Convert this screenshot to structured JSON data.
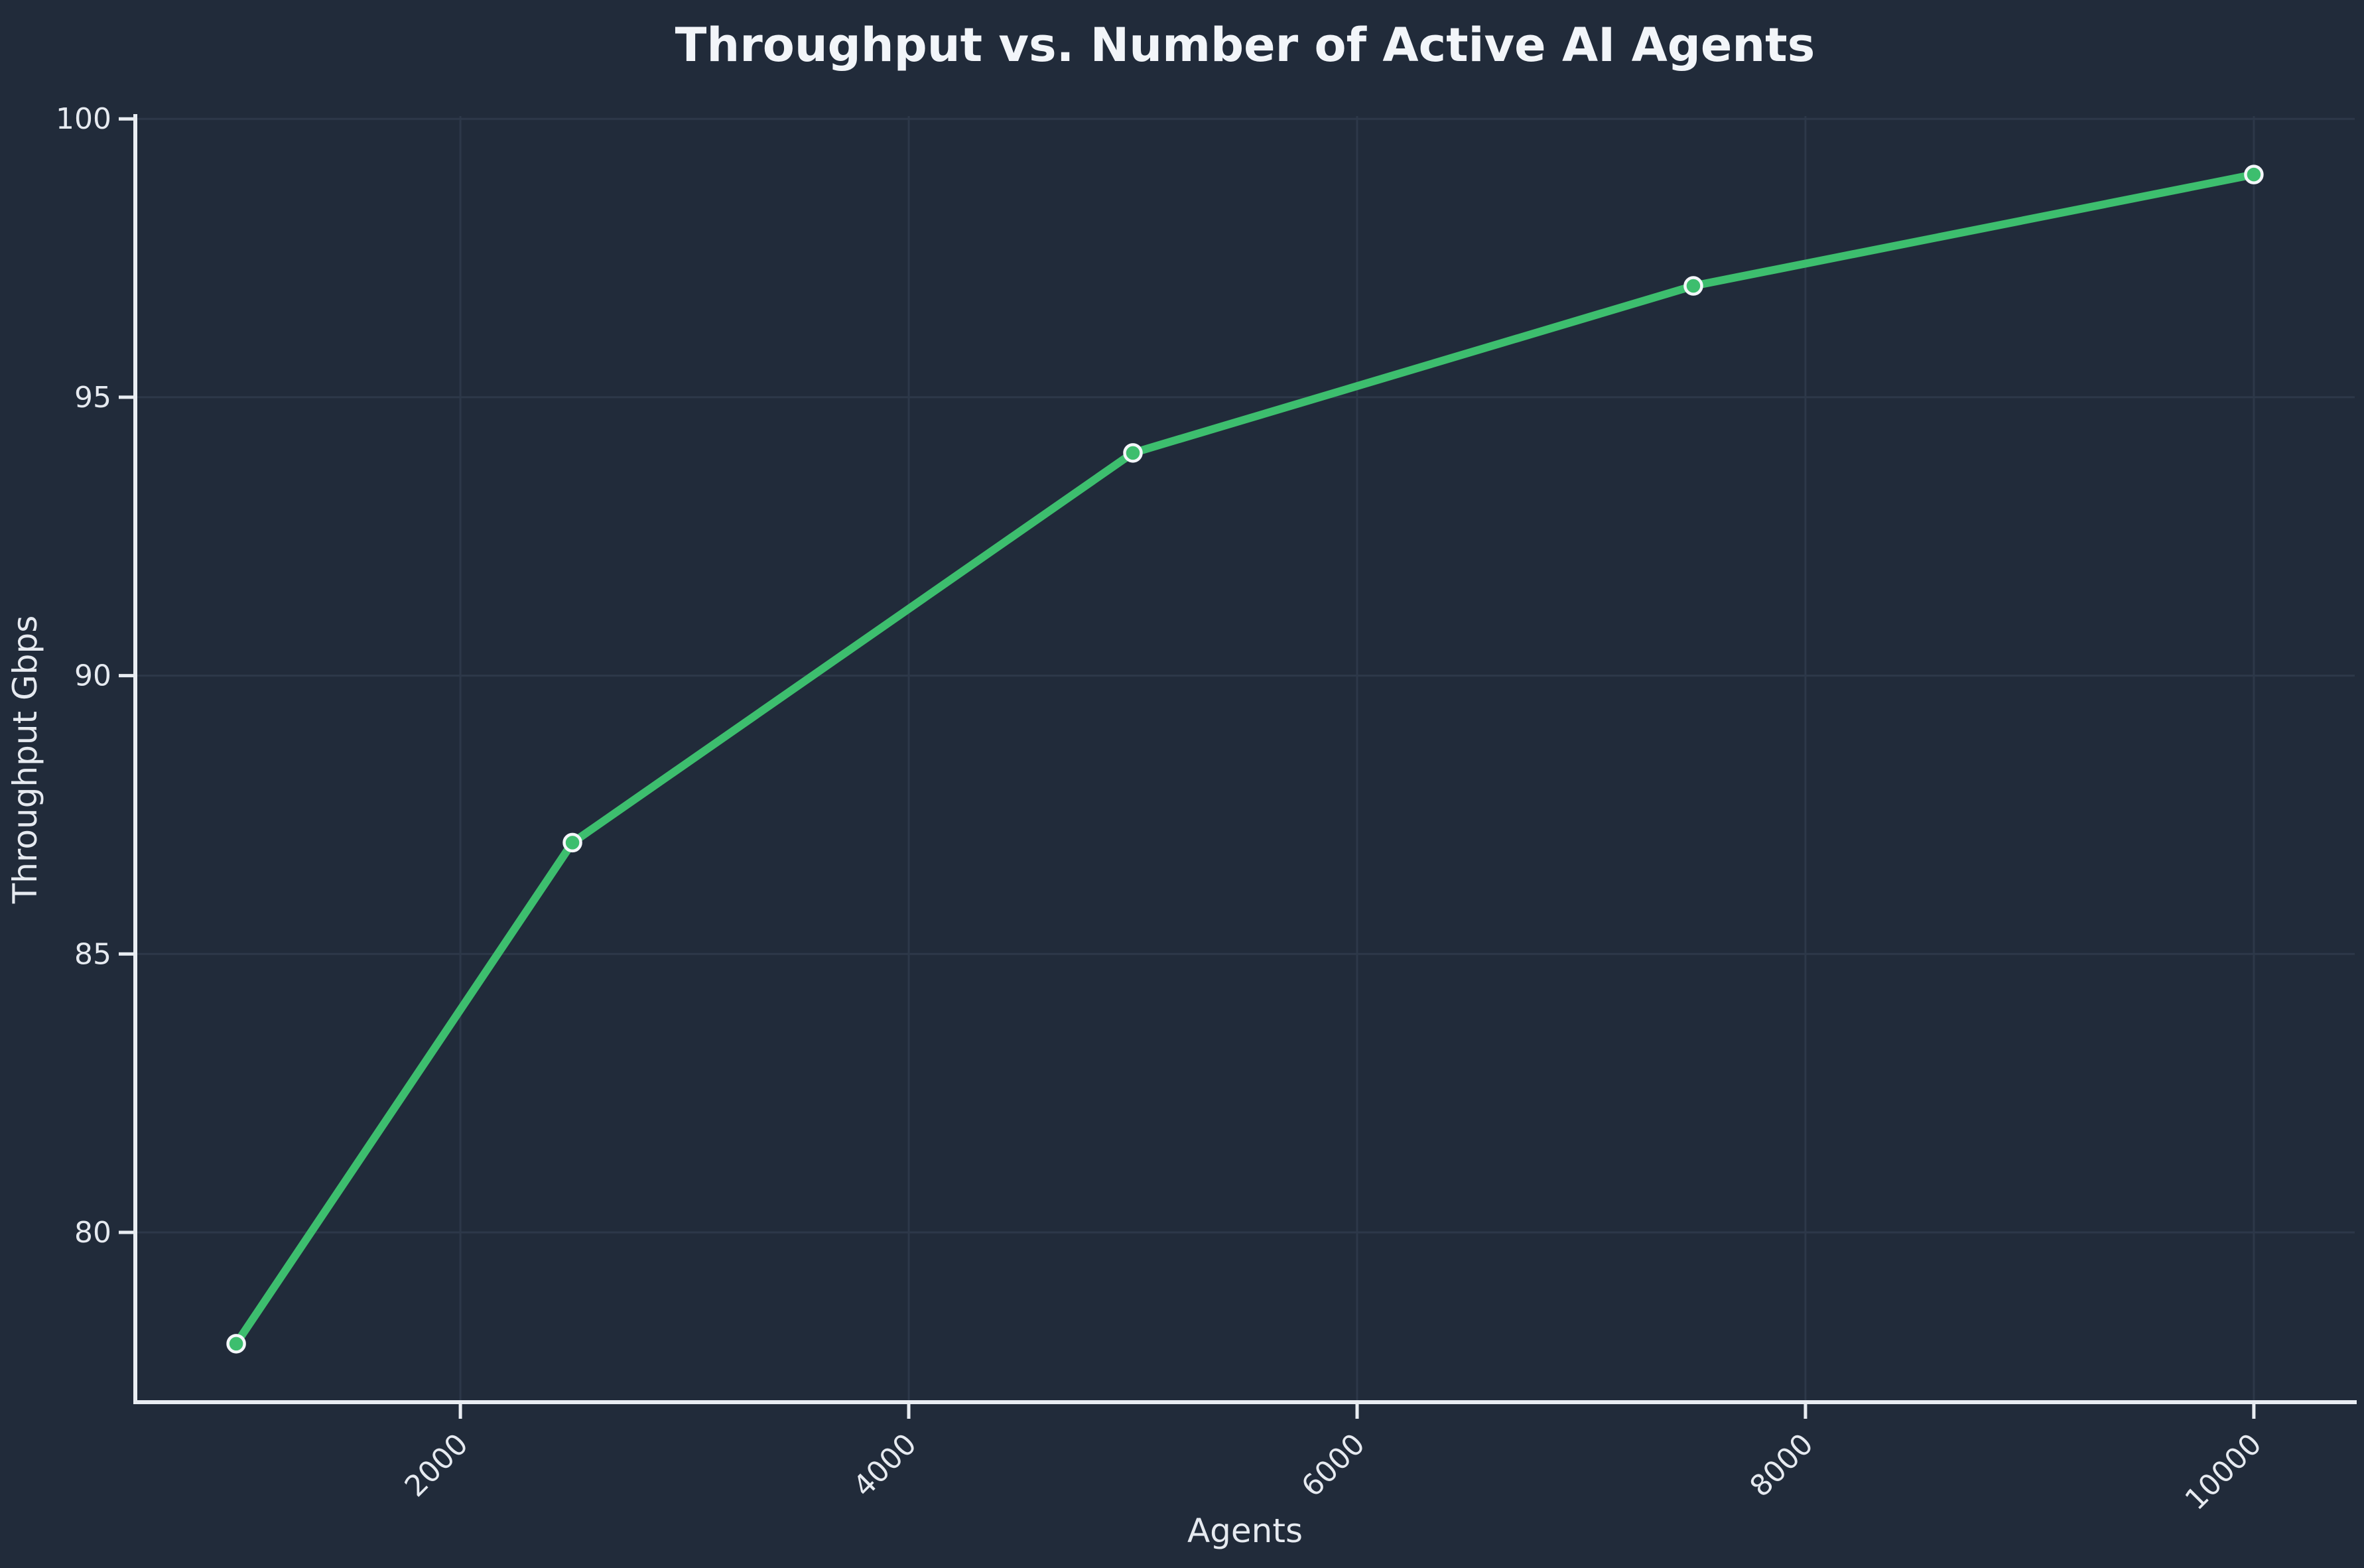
{
  "page": {
    "background": "#212B3A"
  },
  "chart": {
    "colors": {
      "bg": "#212B3A",
      "grid": "#2D3849",
      "spine": "#E9EDF2",
      "text": "#E6EAF0",
      "title": "#F2F5F9",
      "accent": "#3DBE6E",
      "markeredge": "#F4F7FA"
    }
  },
  "chart_data": {
    "type": "line",
    "title": "Throughput vs. Number of Active AI Agents",
    "xlabel": "Agents",
    "ylabel": "Throughput Gbps",
    "series": [
      {
        "name": "Throughput",
        "x": [
          1000,
          2500,
          5000,
          7500,
          10000
        ],
        "y": [
          78,
          87,
          94,
          97,
          99
        ]
      }
    ],
    "xticks": [
      2000,
      4000,
      6000,
      8000,
      10000
    ],
    "yticks": [
      80,
      85,
      90,
      95,
      100
    ],
    "xlim": [
      550,
      10450
    ],
    "ylim": [
      76.95,
      100.05
    ],
    "grid": true,
    "legend": false,
    "marker": "circle",
    "line_color": "#3DBE6E"
  }
}
